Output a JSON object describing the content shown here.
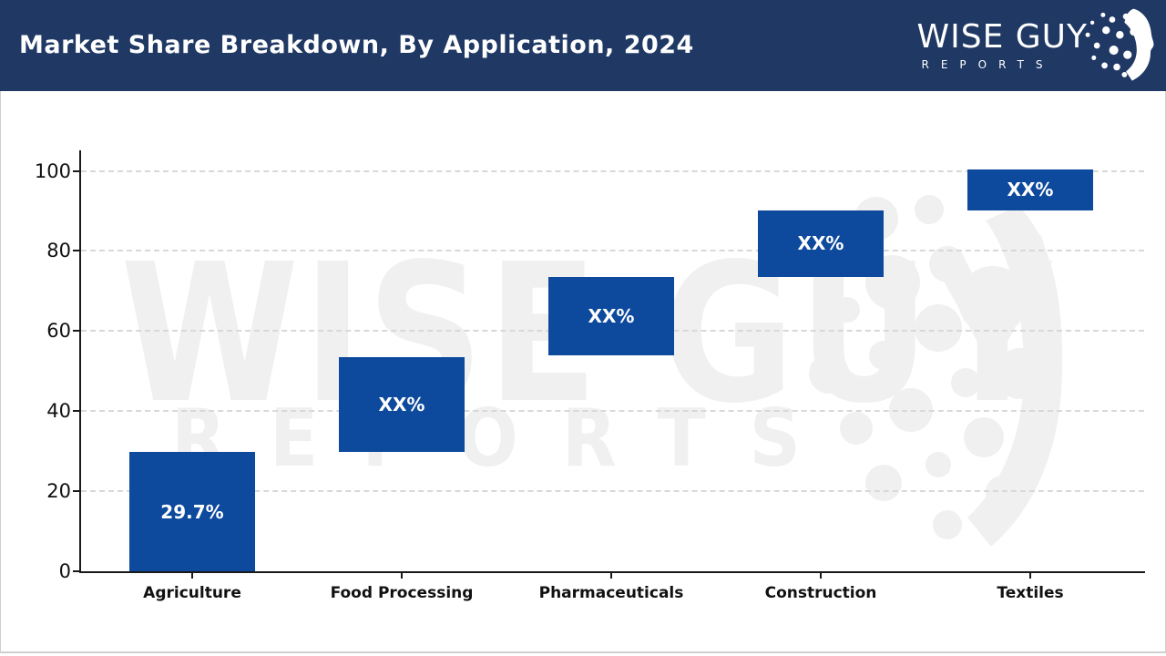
{
  "header": {
    "title": "Market Share Breakdown, By Application, 2024",
    "logo_line1": "WISE GUY",
    "logo_line2": "REPORTS",
    "bg_color": "#1f3864"
  },
  "watermark": {
    "line1": "WISE GUY",
    "line2": "REPORTS"
  },
  "chart_data": {
    "type": "bar",
    "subtype": "waterfall",
    "title": "Market Share Breakdown, By Application, 2024",
    "categories": [
      "Agriculture",
      "Food Processing",
      "Pharmaceuticals",
      "Construction",
      "Textiles"
    ],
    "segments": [
      {
        "category": "Agriculture",
        "start": 0,
        "end": 29.7,
        "label": "29.7%"
      },
      {
        "category": "Food Processing",
        "start": 29.7,
        "end": 53.4,
        "label": "XX%"
      },
      {
        "category": "Pharmaceuticals",
        "start": 54.0,
        "end": 73.4,
        "label": "XX%"
      },
      {
        "category": "Construction",
        "start": 73.4,
        "end": 90.2,
        "label": "XX%"
      },
      {
        "category": "Textiles",
        "start": 90.2,
        "end": 100.4,
        "label": "XX%"
      }
    ],
    "y_ticks": [
      0,
      20,
      40,
      60,
      80,
      100
    ],
    "ylim": [
      0,
      105
    ],
    "xlabel": "",
    "ylabel": "",
    "bar_color": "#0d499c",
    "label_color": "#ffffff",
    "grid": "horizontal dashed",
    "legend": "none"
  }
}
